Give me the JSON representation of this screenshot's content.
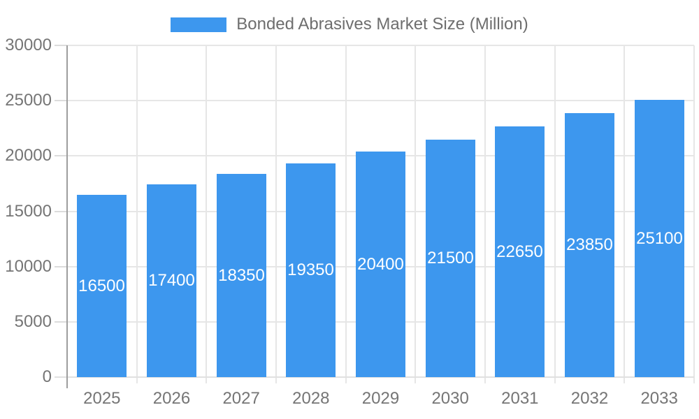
{
  "chart_data": {
    "type": "bar",
    "title": "Bonded Abrasives Market Size (Million)",
    "categories": [
      "2025",
      "2026",
      "2027",
      "2028",
      "2029",
      "2030",
      "2031",
      "2032",
      "2033"
    ],
    "values": [
      16500,
      17400,
      18350,
      19350,
      20400,
      21500,
      22650,
      23850,
      25100
    ],
    "series": [
      {
        "name": "Bonded Abrasives Market Size (Million)",
        "values": [
          16500,
          17400,
          18350,
          19350,
          20400,
          21500,
          22650,
          23850,
          25100
        ]
      }
    ],
    "xlabel": "",
    "ylabel": "",
    "ylim": [
      0,
      30000
    ],
    "yticks": [
      0,
      5000,
      10000,
      15000,
      20000,
      25000,
      30000
    ],
    "grid": true,
    "legend_position": "top",
    "value_labels_inside_bars": true,
    "colors": {
      "bar": "#3d97ee",
      "value_label": "#ffffff",
      "axis_text": "#757575",
      "legend_text": "#6e6e6e",
      "gridline": "#e6e6e6",
      "y_axis_line": "#9e9e9e",
      "x_axis_line": "#e0e0e0",
      "background": "#ffffff"
    }
  }
}
